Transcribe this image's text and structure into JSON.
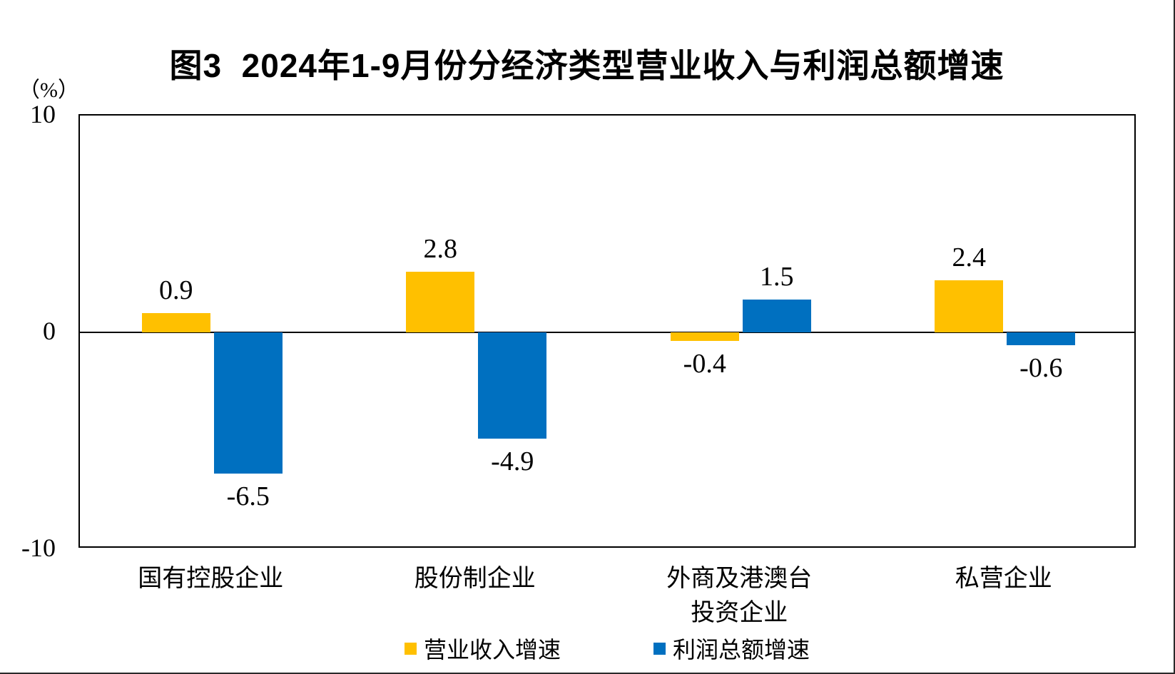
{
  "page": {
    "title": "图3  2024年1-9月份分经济类型营业收入与利润总额增速",
    "unit_label": "（%）"
  },
  "chart_data": {
    "type": "bar",
    "title": "图3  2024年1-9月份分经济类型营业收入与利润总额增速",
    "unit": "（%）",
    "xlabel": "",
    "ylabel": "（%）",
    "ylim": [
      -10,
      10
    ],
    "yticks": [
      10,
      0,
      -10
    ],
    "grid": false,
    "legend_position": "bottom",
    "value_labels": true,
    "categories": [
      "国有控股企业",
      "股份制企业",
      "外商及港澳台\n投资企业",
      "私营企业"
    ],
    "series": [
      {
        "name": "营业收入增速",
        "color": "#FFC000",
        "values": [
          0.9,
          2.8,
          -0.4,
          2.4
        ]
      },
      {
        "name": "利润总额增速",
        "color": "#0070C0",
        "values": [
          -6.5,
          -4.9,
          1.5,
          -0.6
        ]
      }
    ]
  }
}
